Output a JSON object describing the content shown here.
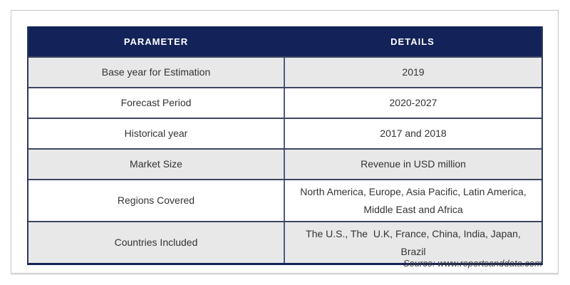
{
  "colors": {
    "header_bg": "#132258",
    "header_text": "#ffffff",
    "row_shaded_bg": "#e8e8e8",
    "row_border": "#3b4661",
    "column_divider": "#4c5d85",
    "table_side_border": "#2c3a63",
    "cell_text": "#333333",
    "source_text": "#3b3b3b",
    "frame_border": "#c6c6c6"
  },
  "chart_data": {
    "type": "table",
    "columns": [
      "PARAMETER",
      "DETAILS"
    ],
    "rows": [
      [
        "Base year for Estimation",
        "2019"
      ],
      [
        "Forecast Period",
        "2020-2027"
      ],
      [
        "Historical year",
        "2017 and 2018"
      ],
      [
        "Market Size",
        "Revenue in USD million"
      ],
      [
        "Regions Covered",
        "North America, Europe, Asia Pacific, Latin America, Middle East and Africa"
      ],
      [
        "Countries Included",
        "The U.S., The  U.K, France, China, India, Japan, Brazil"
      ]
    ],
    "shaded_row_indices": [
      0,
      3,
      5
    ],
    "source": "Source: www.reportsanddata.com",
    "legend_position": "none",
    "grid": true
  }
}
